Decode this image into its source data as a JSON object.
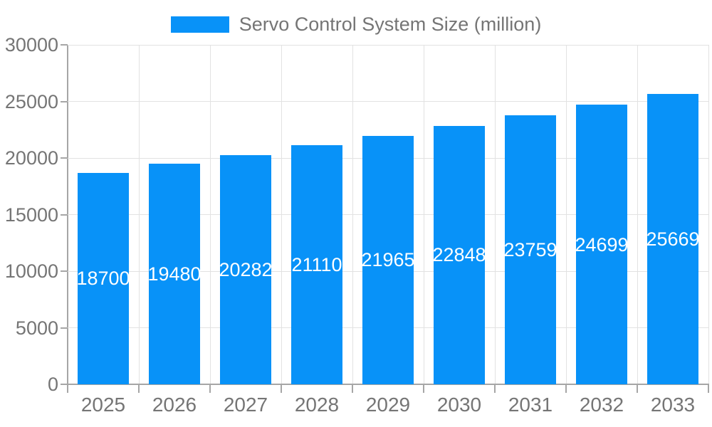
{
  "chart_data": {
    "type": "bar",
    "title": "",
    "legend": "Servo Control System Size (million)",
    "categories": [
      "2025",
      "2026",
      "2027",
      "2028",
      "2029",
      "2030",
      "2031",
      "2032",
      "2033"
    ],
    "values": [
      18700,
      19480,
      20282,
      21110,
      21965,
      22848,
      23759,
      24699,
      25669
    ],
    "xlabel": "",
    "ylabel": "",
    "ylim": [
      0,
      30000
    ],
    "yticks": [
      0,
      5000,
      10000,
      15000,
      20000,
      25000,
      30000
    ],
    "grid": true,
    "legend_position": "top-center",
    "value_labels": "inside-center",
    "colors": {
      "bar": "#0892f8",
      "value_label": "#ffffff",
      "axis_label": "#757575",
      "grid_line": "#e2e2e2",
      "axis_line": "#a6a6a6",
      "background": "#ffffff"
    }
  }
}
